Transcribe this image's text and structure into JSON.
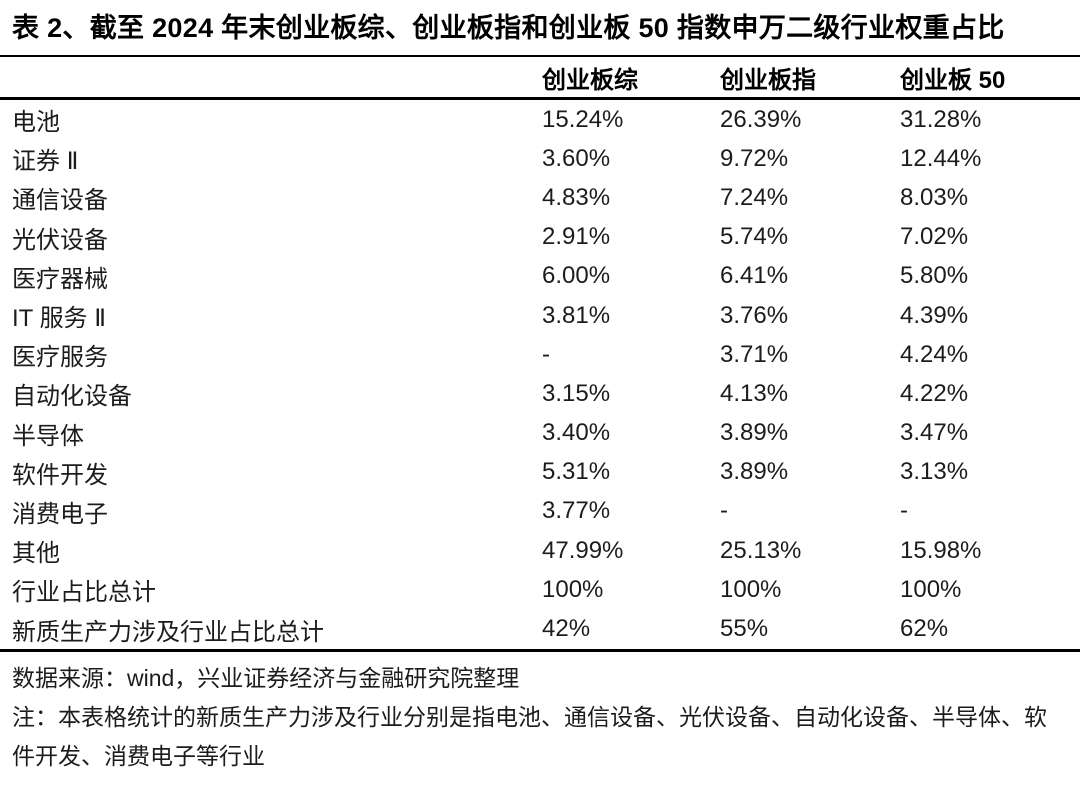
{
  "title": "表 2、截至 2024 年末创业板综、创业板指和创业板 50 指数申万二级行业权重占比",
  "table": {
    "columns": [
      "创业板综",
      "创业板指",
      "创业板 50"
    ],
    "rows": [
      {
        "label": "电池",
        "values": [
          "15.24%",
          "26.39%",
          "31.28%"
        ]
      },
      {
        "label": "证券 Ⅱ",
        "values": [
          "3.60%",
          "9.72%",
          "12.44%"
        ]
      },
      {
        "label": "通信设备",
        "values": [
          "4.83%",
          "7.24%",
          "8.03%"
        ]
      },
      {
        "label": "光伏设备",
        "values": [
          "2.91%",
          "5.74%",
          "7.02%"
        ]
      },
      {
        "label": "医疗器械",
        "values": [
          "6.00%",
          "6.41%",
          "5.80%"
        ]
      },
      {
        "label": "IT 服务 Ⅱ",
        "values": [
          "3.81%",
          "3.76%",
          "4.39%"
        ]
      },
      {
        "label": "医疗服务",
        "values": [
          "-",
          "3.71%",
          "4.24%"
        ]
      },
      {
        "label": "自动化设备",
        "values": [
          "3.15%",
          "4.13%",
          "4.22%"
        ]
      },
      {
        "label": "半导体",
        "values": [
          "3.40%",
          "3.89%",
          "3.47%"
        ]
      },
      {
        "label": "软件开发",
        "values": [
          "5.31%",
          "3.89%",
          "3.13%"
        ]
      },
      {
        "label": "消费电子",
        "values": [
          "3.77%",
          "-",
          "-"
        ]
      },
      {
        "label": "其他",
        "values": [
          "47.99%",
          "25.13%",
          "15.98%"
        ]
      },
      {
        "label": "行业占比总计",
        "values": [
          "100%",
          "100%",
          "100%"
        ]
      },
      {
        "label": "新质生产力涉及行业占比总计",
        "values": [
          "42%",
          "55%",
          "62%"
        ]
      }
    ]
  },
  "footer": {
    "source": "数据来源：wind，兴业证券经济与金融研究院整理",
    "note": "注：本表格统计的新质生产力涉及行业分别是指电池、通信设备、光伏设备、自动化设备、半导体、软件开发、消费电子等行业"
  }
}
